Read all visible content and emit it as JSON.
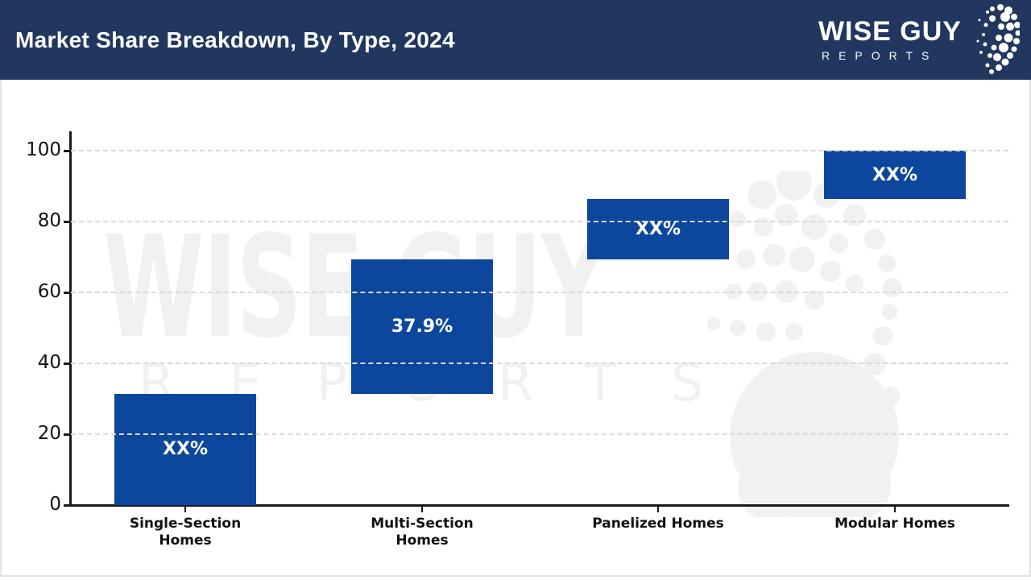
{
  "header": {
    "title": "Market Share Breakdown, By Type, 2024",
    "logo": {
      "line1": "WISE GUY",
      "line2": "REPORTS"
    }
  },
  "watermark": {
    "line1": "WISE GUY",
    "line2": "REPORTS"
  },
  "colors": {
    "header_bg": "#21375F",
    "title_text": "#FFFFFF",
    "bar": "#0C479D",
    "bar_label": "#FFFFFF",
    "grid": "#D9D9D9",
    "axis": "#1A1A1A",
    "tick_text": "#111111",
    "watermark": "#F1F1F1",
    "card_border": "#E3E3E3"
  },
  "chart_data": {
    "type": "bar",
    "subtype": "floating-waterfall",
    "title": "Market Share Breakdown, By Type, 2024",
    "unit": "percent",
    "categories": [
      "Single-Section\nHomes",
      "Multi-Section\nHomes",
      "Panelized Homes",
      "Modular Homes"
    ],
    "series": [
      {
        "name": "Market Share",
        "segments": [
          {
            "category": "Single-Section Homes",
            "start": 0,
            "end": 31.4,
            "value": 31.4,
            "label": "XX%"
          },
          {
            "category": "Multi-Section Homes",
            "start": 31.4,
            "end": 69.3,
            "value": 37.9,
            "label": "37.9%"
          },
          {
            "category": "Panelized Homes",
            "start": 69.3,
            "end": 86.3,
            "value": 17.0,
            "label": "XX%"
          },
          {
            "category": "Modular Homes",
            "start": 86.3,
            "end": 100,
            "value": 13.7,
            "label": "XX%"
          }
        ]
      }
    ],
    "yticks": [
      0,
      20,
      40,
      60,
      80,
      100
    ],
    "ylim": [
      0,
      105
    ],
    "grid": "horizontal-dashed",
    "legend": "none"
  }
}
